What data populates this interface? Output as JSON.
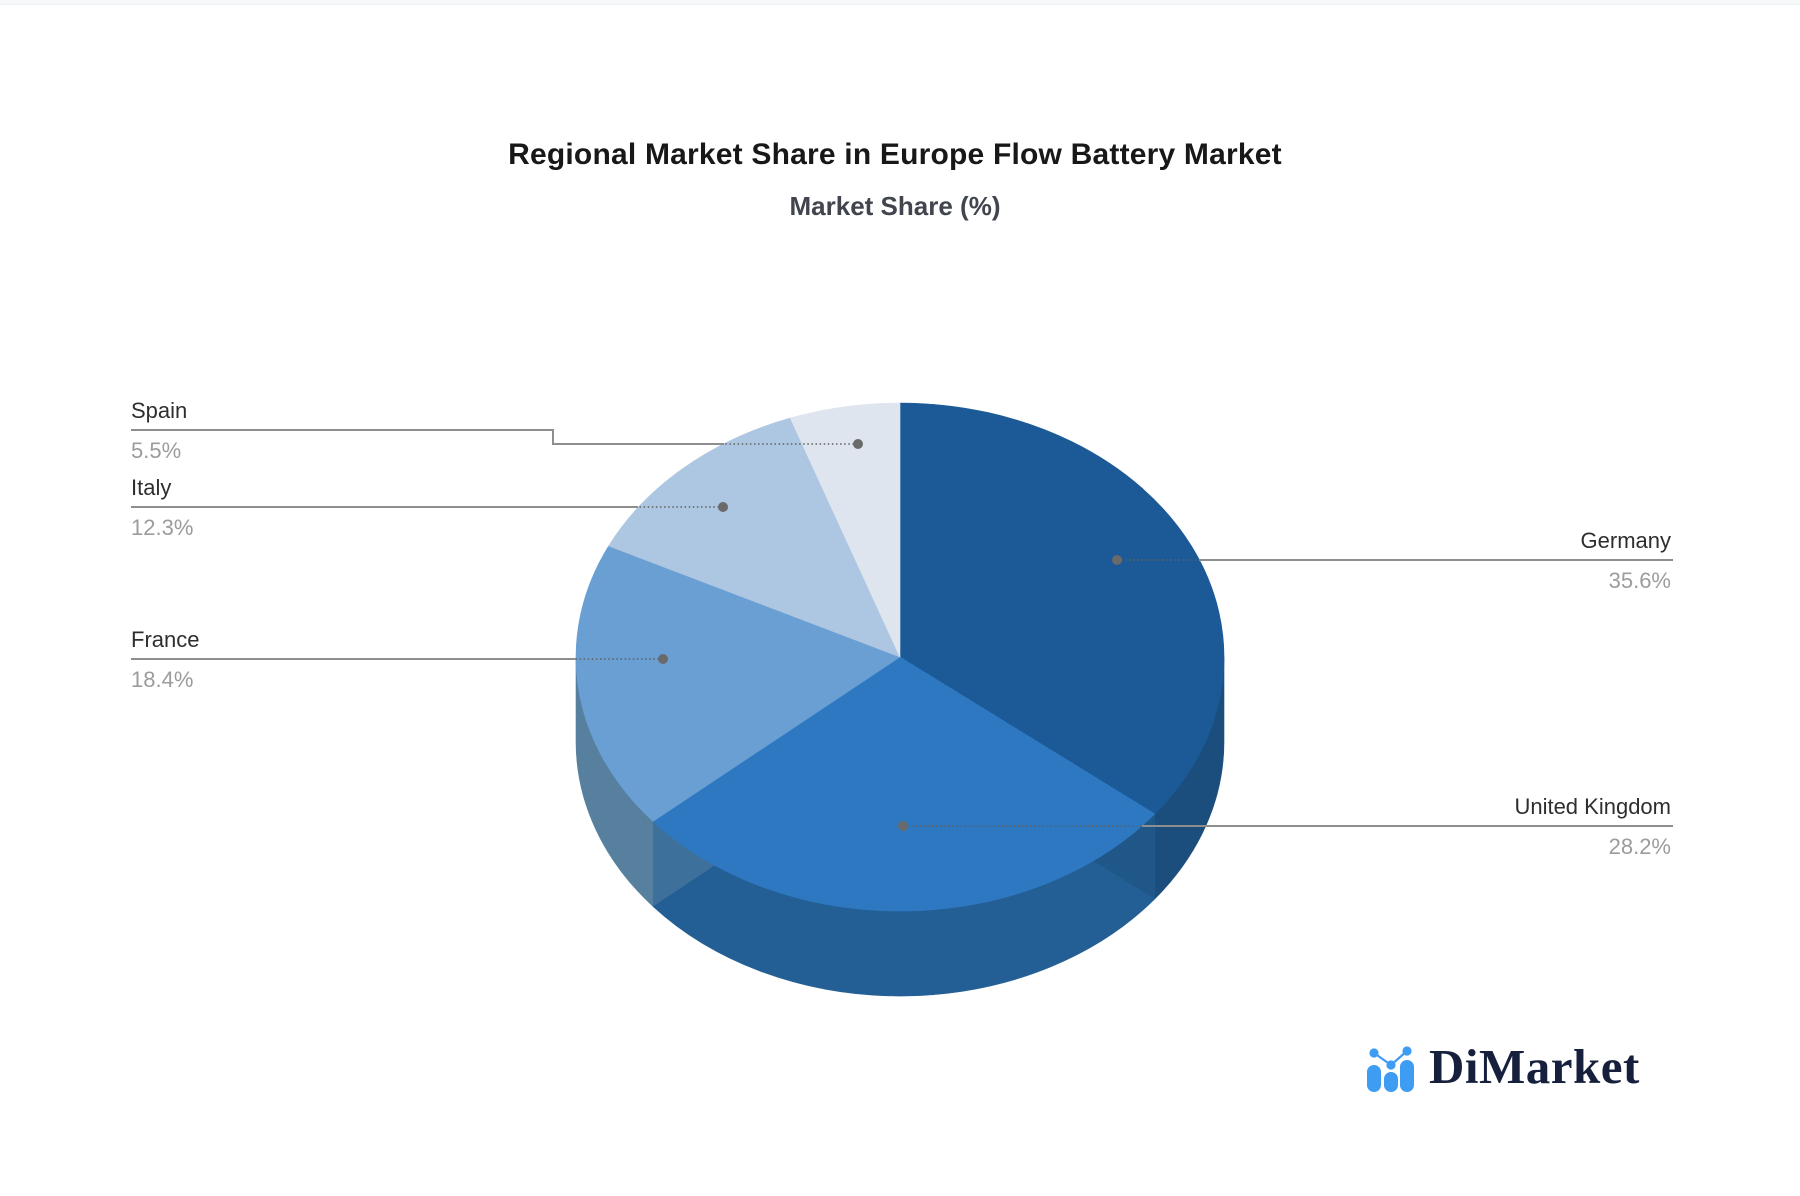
{
  "page": {
    "background": "#ffffff",
    "top_strip_color": "#f7f8f9"
  },
  "title": "Regional Market Share in Europe Flow Battery Market",
  "subtitle": "Market Share (%)",
  "chart_data": {
    "type": "pie",
    "style": "3d",
    "title": "Regional Market Share in Europe Flow Battery Market",
    "subtitle": "Market Share (%)",
    "unit": "%",
    "start_angle_deg": 0,
    "direction": "clockwise",
    "value_label_format": "{value}%",
    "slices": [
      {
        "label": "Germany",
        "value": 35.6,
        "color": "#1B5A97",
        "side_color": "#1C4E7D",
        "callout_side": "right"
      },
      {
        "label": "United Kingdom",
        "value": 28.2,
        "color": "#2E78C2",
        "side_color": "#235F94",
        "callout_side": "right"
      },
      {
        "label": "France",
        "value": 18.4,
        "color": "#6A9FD4",
        "side_color": "#57809F",
        "callout_side": "left"
      },
      {
        "label": "Italy",
        "value": 12.3,
        "color": "#ADC6E2",
        "callout_side": "left"
      },
      {
        "label": "Spain",
        "value": 5.5,
        "color": "#DEE5EF",
        "callout_side": "left"
      }
    ]
  },
  "callouts": {
    "label_color": "#2E2E2E",
    "value_color": "#9C9C9C",
    "line_color": "#8E8E8E",
    "dot_color": "#6A6A6A"
  },
  "branding": {
    "name": "DiMarket",
    "icon": "bar-line-chart-logo-icon",
    "icon_color": "#3E9CF3",
    "text_color": "#16203C"
  }
}
